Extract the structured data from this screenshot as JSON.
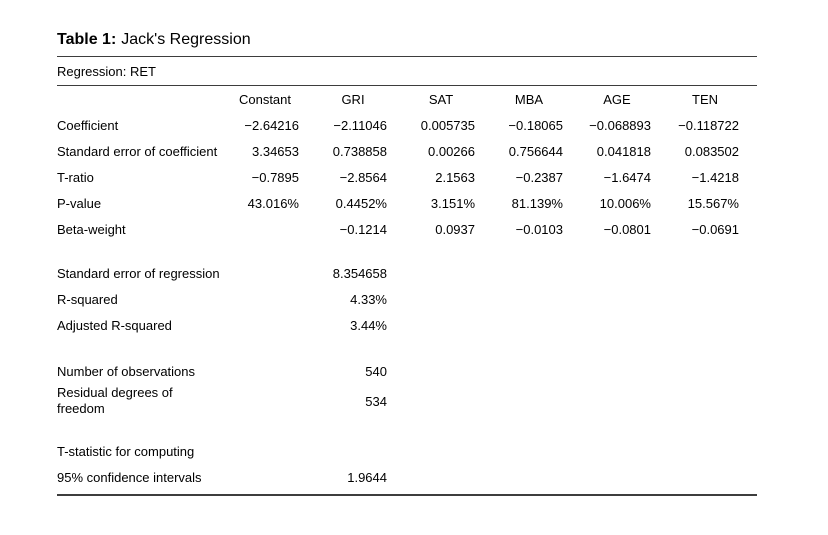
{
  "title": {
    "prefix": "Table 1:",
    "text": "Jack's Regression"
  },
  "subtitle": "Regression: RET",
  "table": {
    "columns": [
      "",
      "Constant",
      "GRI",
      "SAT",
      "MBA",
      "AGE",
      "TEN"
    ],
    "coefficient_rows": [
      {
        "label": "Coefficient",
        "values": [
          "−2.64216",
          "−2.11046",
          "0.005735",
          "−0.18065",
          "−0.068893",
          "−0.118722"
        ]
      },
      {
        "label": "Standard error of coefficient",
        "values": [
          "3.34653",
          "0.738858",
          "0.00266",
          "0.756644",
          "0.041818",
          "0.083502"
        ]
      },
      {
        "label": "T-ratio",
        "values": [
          "−0.7895",
          "−2.8564",
          "2.1563",
          "−0.2387",
          "−1.6474",
          "−1.4218"
        ]
      },
      {
        "label": "P-value",
        "values": [
          "43.016%",
          "0.4452%",
          "3.151%",
          "81.139%",
          "10.006%",
          "15.567%"
        ]
      },
      {
        "label": "Beta-weight",
        "values": [
          "",
          "−0.1214",
          "0.0937",
          "−0.0103",
          "−0.0801",
          "−0.0691"
        ]
      }
    ],
    "summary_rows": [
      {
        "label": "Standard error of regression",
        "value": "8.354658"
      },
      {
        "label": "R-squared",
        "value": "4.33%"
      },
      {
        "label": "Adjusted R-squared",
        "value": "3.44%"
      }
    ],
    "observation_rows": [
      {
        "label": "Number of observations",
        "value": "540"
      },
      {
        "label": "Residual degrees of freedom",
        "value": "534"
      }
    ],
    "tstat_rows": [
      {
        "label": "T-statistic for computing",
        "value": ""
      },
      {
        "label": "95% confidence intervals",
        "value": "1.9644"
      }
    ]
  },
  "colors": {
    "text": "#000000",
    "rule": "#3d3d3d",
    "background": "#ffffff"
  }
}
